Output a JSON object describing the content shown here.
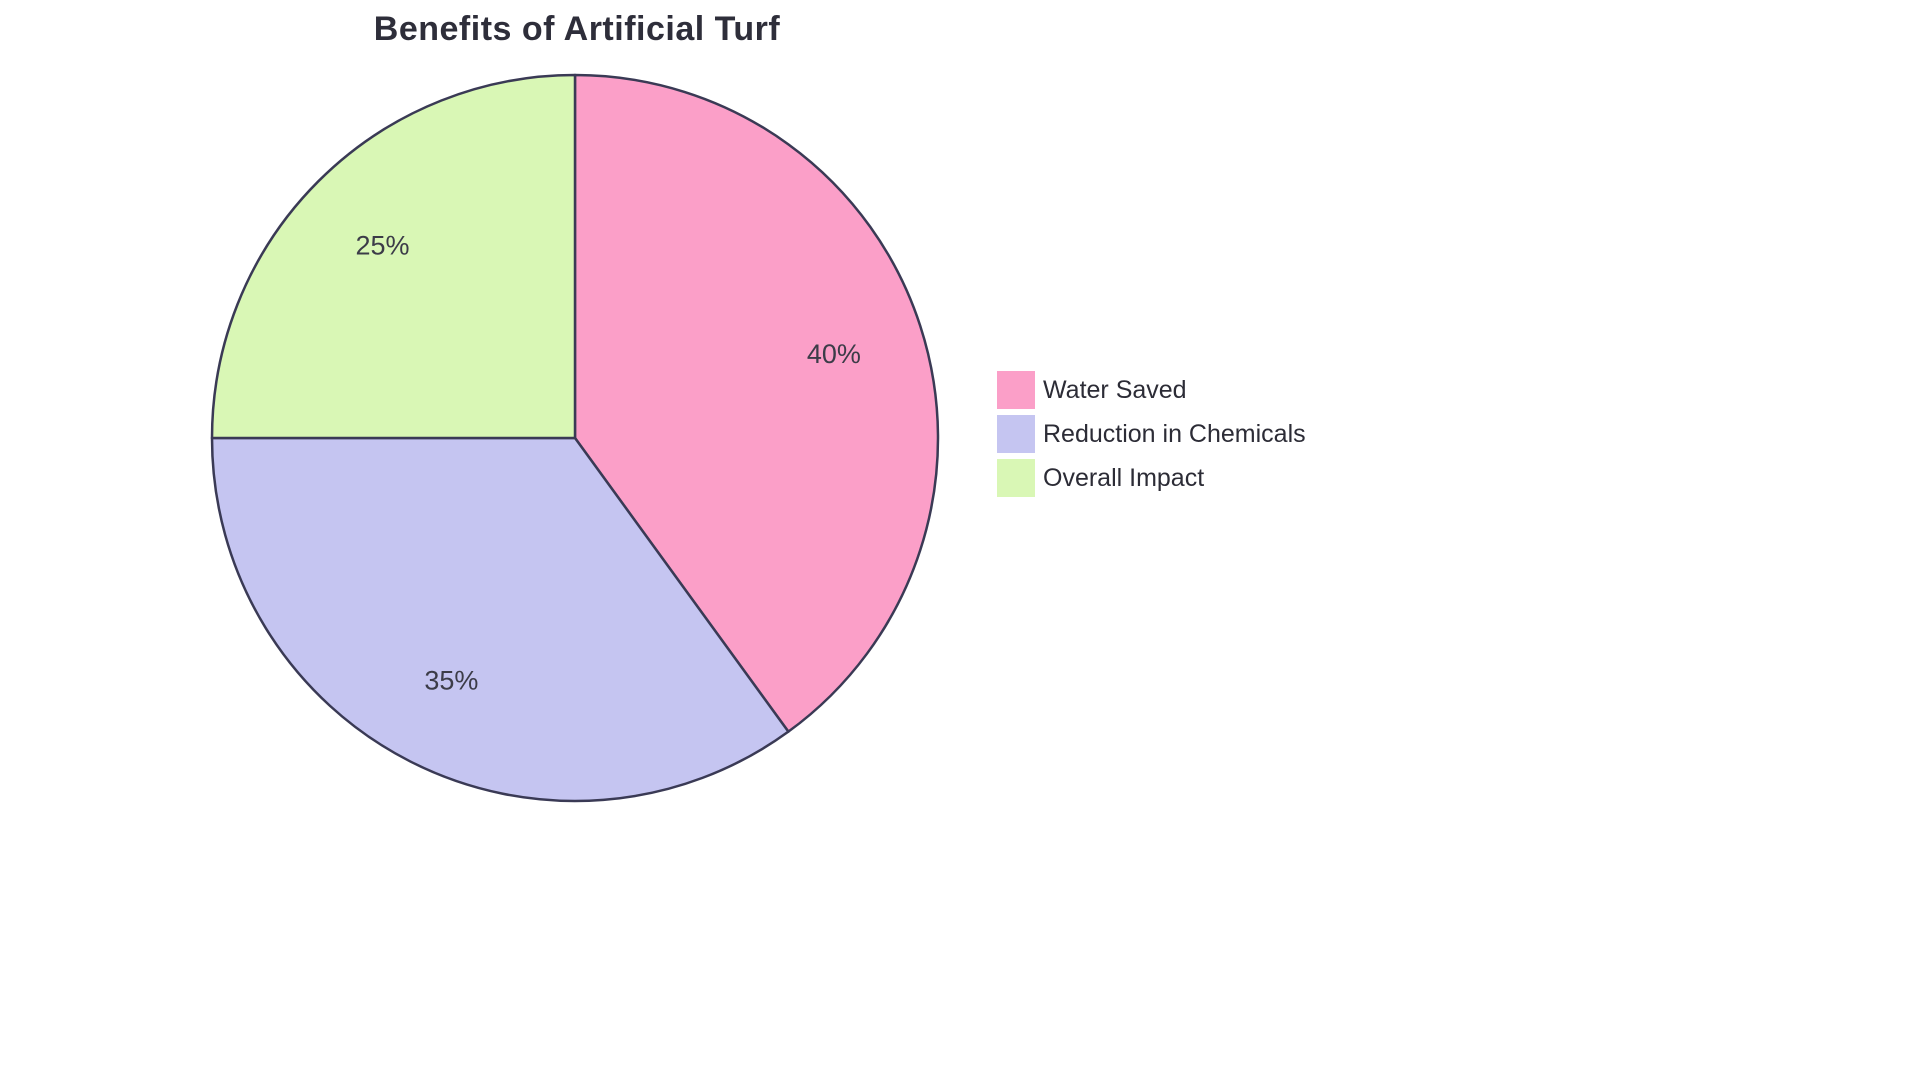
{
  "page": {
    "background_color": "#ffffff"
  },
  "chart_data": {
    "type": "pie",
    "title": "Benefits of Artificial Turf",
    "start_angle_deg": 0,
    "direction": "clockwise",
    "legend_position": "right",
    "stroke_color": "#3a3a55",
    "stroke_width": 2.5,
    "title_color": "#2e2e3a",
    "label_color": "#3c3c48",
    "slices": [
      {
        "label": "Water Saved",
        "value": 40,
        "pct_label": "40%",
        "color": "#fb9fc8"
      },
      {
        "label": "Reduction in Chemicals",
        "value": 35,
        "pct_label": "35%",
        "color": "#c5c5f1"
      },
      {
        "label": "Overall Impact",
        "value": 25,
        "pct_label": "25%",
        "color": "#d9f7b5"
      }
    ]
  }
}
